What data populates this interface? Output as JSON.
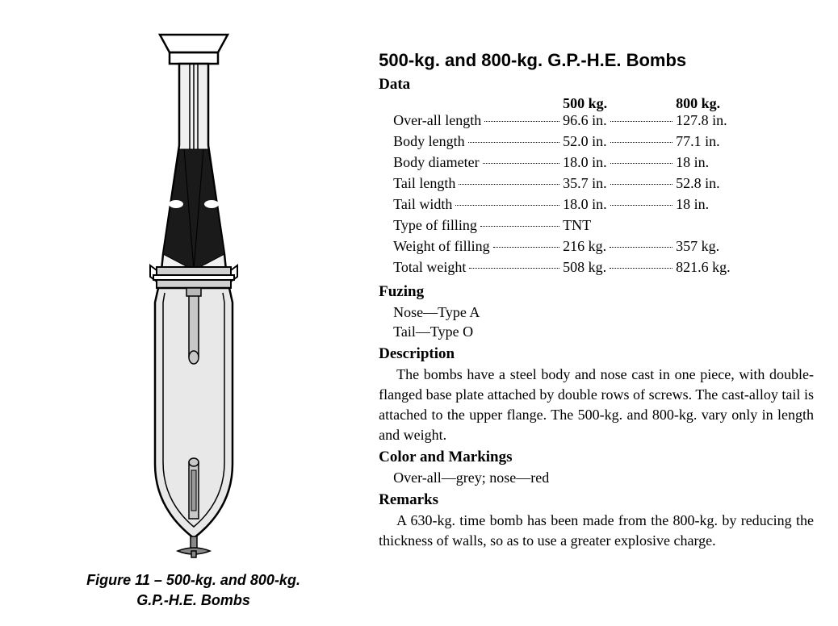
{
  "figure": {
    "caption_line1": "Figure 11 – 500-kg. and 800-kg.",
    "caption_line2": "G.P.-H.E. Bombs",
    "stroke_color": "#000000",
    "fill_light": "#d8d8d8",
    "fill_dark": "#1a1a1a",
    "fill_body": "#e8e8e8",
    "background": "#ffffff"
  },
  "title": "500-kg. and 800-kg. G.P.-H.E. Bombs",
  "sections": {
    "data_header": "Data",
    "fuzing_header": "Fuzing",
    "description_header": "Description",
    "color_header": "Color and Markings",
    "remarks_header": "Remarks"
  },
  "data_table": {
    "col1_header": "500 kg.",
    "col2_header": "800 kg.",
    "rows": [
      {
        "label": "Over-all length",
        "col1": "96.6 in.",
        "col2": "127.8 in."
      },
      {
        "label": "Body length",
        "col1": "52.0 in.",
        "col2": "77.1 in."
      },
      {
        "label": "Body diameter",
        "col1": "18.0 in.",
        "col2": "18 in."
      },
      {
        "label": "Tail length",
        "col1": "35.7 in.",
        "col2": "52.8 in."
      },
      {
        "label": "Tail width",
        "col1": "18.0 in.",
        "col2": "18 in."
      },
      {
        "label": "Type of filling",
        "col1": "TNT",
        "col2": ""
      },
      {
        "label": "Weight of filling",
        "col1": "216 kg.",
        "col2": "357 kg."
      },
      {
        "label": "Total weight",
        "col1": "508 kg.",
        "col2": "821.6 kg."
      }
    ]
  },
  "fuzing": {
    "nose": "Nose—Type A",
    "tail": "Tail—Type O"
  },
  "description_text": "The bombs have a steel body and nose cast in one piece, with double-flanged base plate attached by double rows of screws. The cast-alloy tail is attached to the upper flange. The 500-kg. and 800-kg. vary only in length and weight.",
  "color_text": "Over-all—grey; nose—red",
  "remarks_text": "A 630-kg. time bomb has been made from the 800-kg. by reducing the thickness of walls, so as to use a greater explosive charge."
}
